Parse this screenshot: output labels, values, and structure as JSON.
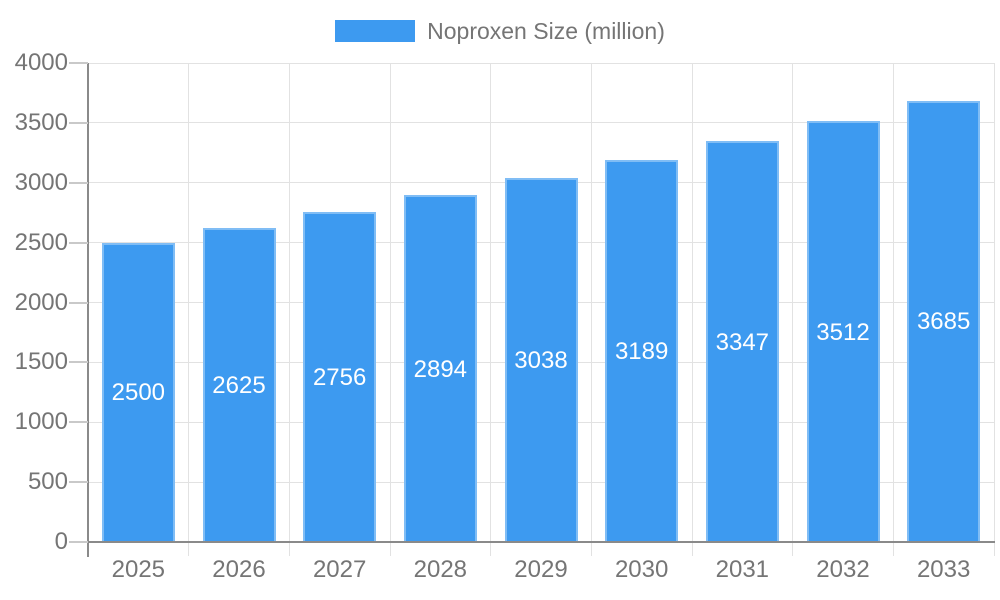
{
  "chart_data": {
    "type": "bar",
    "title": "",
    "legend": "Noproxen Size (million)",
    "legend_position": "top",
    "categories": [
      "2025",
      "2026",
      "2027",
      "2028",
      "2029",
      "2030",
      "2031",
      "2032",
      "2033"
    ],
    "values": [
      2500,
      2625,
      2756,
      2894,
      3038,
      3189,
      3347,
      3512,
      3685
    ],
    "xlabel": "",
    "ylabel": "",
    "ylim": [
      0,
      4000
    ],
    "yticks": [
      0,
      500,
      1000,
      1500,
      2000,
      2500,
      3000,
      3500,
      4000
    ],
    "grid": true,
    "value_labels": "inside-center, white",
    "colors": {
      "bar": "#3D9AF0",
      "axis": "#8A8A8A",
      "grid": "#E2E2E2",
      "tick": "#C9C9C9",
      "text": "#757575",
      "bar_label": "#FFFFFF"
    }
  }
}
